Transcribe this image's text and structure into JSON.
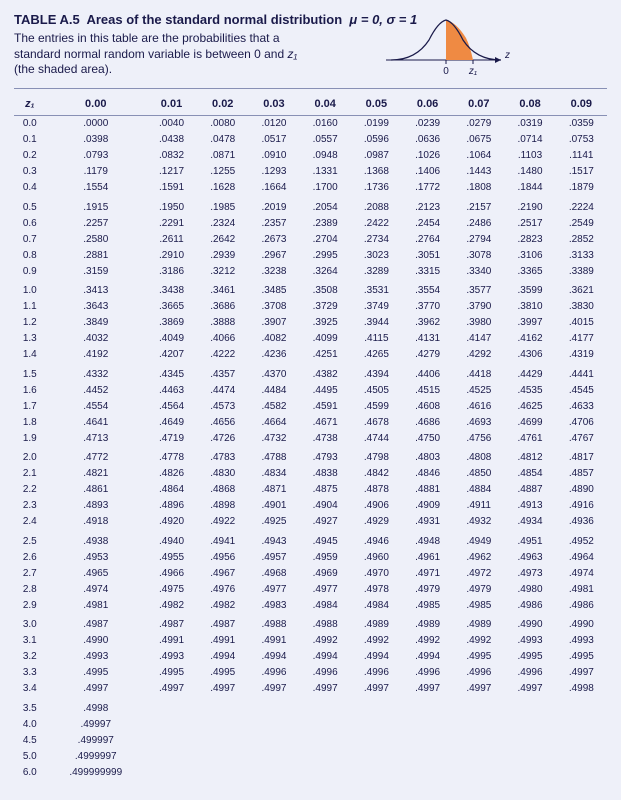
{
  "table_id": "TABLE A.5",
  "title_main": "Areas of the standard normal distribution",
  "mu_label": "μ = 0,",
  "sigma_label": "σ = 1",
  "subtitle_line1": "The entries in this table are the probabilities that a",
  "subtitle_line2": "standard normal random variable is between 0 and",
  "z1_sym": "z₁",
  "subtitle_line3": "(the shaded area).",
  "curve_axis_z": "z",
  "curve_axis_0": "0",
  "curve_axis_z1": "z₁",
  "headers": [
    "z₁",
    "0.00",
    "0.01",
    "0.02",
    "0.03",
    "0.04",
    "0.05",
    "0.06",
    "0.07",
    "0.08",
    "0.09"
  ],
  "colors": {
    "page_bg": "#eef0f9",
    "text": "#1a1a4a",
    "rule": "#8890b5",
    "curve_stroke": "#1a1a4a",
    "curve_fill": "#ef8a43"
  },
  "groups": [
    [
      {
        "z1": "0.0",
        "v": [
          ".0000",
          ".0040",
          ".0080",
          ".0120",
          ".0160",
          ".0199",
          ".0239",
          ".0279",
          ".0319",
          ".0359"
        ]
      },
      {
        "z1": "0.1",
        "v": [
          ".0398",
          ".0438",
          ".0478",
          ".0517",
          ".0557",
          ".0596",
          ".0636",
          ".0675",
          ".0714",
          ".0753"
        ]
      },
      {
        "z1": "0.2",
        "v": [
          ".0793",
          ".0832",
          ".0871",
          ".0910",
          ".0948",
          ".0987",
          ".1026",
          ".1064",
          ".1103",
          ".1141"
        ]
      },
      {
        "z1": "0.3",
        "v": [
          ".1179",
          ".1217",
          ".1255",
          ".1293",
          ".1331",
          ".1368",
          ".1406",
          ".1443",
          ".1480",
          ".1517"
        ]
      },
      {
        "z1": "0.4",
        "v": [
          ".1554",
          ".1591",
          ".1628",
          ".1664",
          ".1700",
          ".1736",
          ".1772",
          ".1808",
          ".1844",
          ".1879"
        ]
      }
    ],
    [
      {
        "z1": "0.5",
        "v": [
          ".1915",
          ".1950",
          ".1985",
          ".2019",
          ".2054",
          ".2088",
          ".2123",
          ".2157",
          ".2190",
          ".2224"
        ]
      },
      {
        "z1": "0.6",
        "v": [
          ".2257",
          ".2291",
          ".2324",
          ".2357",
          ".2389",
          ".2422",
          ".2454",
          ".2486",
          ".2517",
          ".2549"
        ]
      },
      {
        "z1": "0.7",
        "v": [
          ".2580",
          ".2611",
          ".2642",
          ".2673",
          ".2704",
          ".2734",
          ".2764",
          ".2794",
          ".2823",
          ".2852"
        ]
      },
      {
        "z1": "0.8",
        "v": [
          ".2881",
          ".2910",
          ".2939",
          ".2967",
          ".2995",
          ".3023",
          ".3051",
          ".3078",
          ".3106",
          ".3133"
        ]
      },
      {
        "z1": "0.9",
        "v": [
          ".3159",
          ".3186",
          ".3212",
          ".3238",
          ".3264",
          ".3289",
          ".3315",
          ".3340",
          ".3365",
          ".3389"
        ]
      }
    ],
    [
      {
        "z1": "1.0",
        "v": [
          ".3413",
          ".3438",
          ".3461",
          ".3485",
          ".3508",
          ".3531",
          ".3554",
          ".3577",
          ".3599",
          ".3621"
        ]
      },
      {
        "z1": "1.1",
        "v": [
          ".3643",
          ".3665",
          ".3686",
          ".3708",
          ".3729",
          ".3749",
          ".3770",
          ".3790",
          ".3810",
          ".3830"
        ]
      },
      {
        "z1": "1.2",
        "v": [
          ".3849",
          ".3869",
          ".3888",
          ".3907",
          ".3925",
          ".3944",
          ".3962",
          ".3980",
          ".3997",
          ".4015"
        ]
      },
      {
        "z1": "1.3",
        "v": [
          ".4032",
          ".4049",
          ".4066",
          ".4082",
          ".4099",
          ".4115",
          ".4131",
          ".4147",
          ".4162",
          ".4177"
        ]
      },
      {
        "z1": "1.4",
        "v": [
          ".4192",
          ".4207",
          ".4222",
          ".4236",
          ".4251",
          ".4265",
          ".4279",
          ".4292",
          ".4306",
          ".4319"
        ]
      }
    ],
    [
      {
        "z1": "1.5",
        "v": [
          ".4332",
          ".4345",
          ".4357",
          ".4370",
          ".4382",
          ".4394",
          ".4406",
          ".4418",
          ".4429",
          ".4441"
        ]
      },
      {
        "z1": "1.6",
        "v": [
          ".4452",
          ".4463",
          ".4474",
          ".4484",
          ".4495",
          ".4505",
          ".4515",
          ".4525",
          ".4535",
          ".4545"
        ]
      },
      {
        "z1": "1.7",
        "v": [
          ".4554",
          ".4564",
          ".4573",
          ".4582",
          ".4591",
          ".4599",
          ".4608",
          ".4616",
          ".4625",
          ".4633"
        ]
      },
      {
        "z1": "1.8",
        "v": [
          ".4641",
          ".4649",
          ".4656",
          ".4664",
          ".4671",
          ".4678",
          ".4686",
          ".4693",
          ".4699",
          ".4706"
        ]
      },
      {
        "z1": "1.9",
        "v": [
          ".4713",
          ".4719",
          ".4726",
          ".4732",
          ".4738",
          ".4744",
          ".4750",
          ".4756",
          ".4761",
          ".4767"
        ]
      }
    ],
    [
      {
        "z1": "2.0",
        "v": [
          ".4772",
          ".4778",
          ".4783",
          ".4788",
          ".4793",
          ".4798",
          ".4803",
          ".4808",
          ".4812",
          ".4817"
        ]
      },
      {
        "z1": "2.1",
        "v": [
          ".4821",
          ".4826",
          ".4830",
          ".4834",
          ".4838",
          ".4842",
          ".4846",
          ".4850",
          ".4854",
          ".4857"
        ]
      },
      {
        "z1": "2.2",
        "v": [
          ".4861",
          ".4864",
          ".4868",
          ".4871",
          ".4875",
          ".4878",
          ".4881",
          ".4884",
          ".4887",
          ".4890"
        ]
      },
      {
        "z1": "2.3",
        "v": [
          ".4893",
          ".4896",
          ".4898",
          ".4901",
          ".4904",
          ".4906",
          ".4909",
          ".4911",
          ".4913",
          ".4916"
        ]
      },
      {
        "z1": "2.4",
        "v": [
          ".4918",
          ".4920",
          ".4922",
          ".4925",
          ".4927",
          ".4929",
          ".4931",
          ".4932",
          ".4934",
          ".4936"
        ]
      }
    ],
    [
      {
        "z1": "2.5",
        "v": [
          ".4938",
          ".4940",
          ".4941",
          ".4943",
          ".4945",
          ".4946",
          ".4948",
          ".4949",
          ".4951",
          ".4952"
        ]
      },
      {
        "z1": "2.6",
        "v": [
          ".4953",
          ".4955",
          ".4956",
          ".4957",
          ".4959",
          ".4960",
          ".4961",
          ".4962",
          ".4963",
          ".4964"
        ]
      },
      {
        "z1": "2.7",
        "v": [
          ".4965",
          ".4966",
          ".4967",
          ".4968",
          ".4969",
          ".4970",
          ".4971",
          ".4972",
          ".4973",
          ".4974"
        ]
      },
      {
        "z1": "2.8",
        "v": [
          ".4974",
          ".4975",
          ".4976",
          ".4977",
          ".4977",
          ".4978",
          ".4979",
          ".4979",
          ".4980",
          ".4981"
        ]
      },
      {
        "z1": "2.9",
        "v": [
          ".4981",
          ".4982",
          ".4982",
          ".4983",
          ".4984",
          ".4984",
          ".4985",
          ".4985",
          ".4986",
          ".4986"
        ]
      }
    ],
    [
      {
        "z1": "3.0",
        "v": [
          ".4987",
          ".4987",
          ".4987",
          ".4988",
          ".4988",
          ".4989",
          ".4989",
          ".4989",
          ".4990",
          ".4990"
        ]
      },
      {
        "z1": "3.1",
        "v": [
          ".4990",
          ".4991",
          ".4991",
          ".4991",
          ".4992",
          ".4992",
          ".4992",
          ".4992",
          ".4993",
          ".4993"
        ]
      },
      {
        "z1": "3.2",
        "v": [
          ".4993",
          ".4993",
          ".4994",
          ".4994",
          ".4994",
          ".4994",
          ".4994",
          ".4995",
          ".4995",
          ".4995"
        ]
      },
      {
        "z1": "3.3",
        "v": [
          ".4995",
          ".4995",
          ".4995",
          ".4996",
          ".4996",
          ".4996",
          ".4996",
          ".4996",
          ".4996",
          ".4997"
        ]
      },
      {
        "z1": "3.4",
        "v": [
          ".4997",
          ".4997",
          ".4997",
          ".4997",
          ".4997",
          ".4997",
          ".4997",
          ".4997",
          ".4997",
          ".4998"
        ]
      }
    ],
    [
      {
        "z1": "3.5",
        "v": [
          ".4998",
          "",
          "",
          "",
          "",
          "",
          "",
          "",
          "",
          ""
        ]
      },
      {
        "z1": "4.0",
        "v": [
          ".49997",
          "",
          "",
          "",
          "",
          "",
          "",
          "",
          "",
          ""
        ]
      },
      {
        "z1": "4.5",
        "v": [
          ".499997",
          "",
          "",
          "",
          "",
          "",
          "",
          "",
          "",
          ""
        ]
      },
      {
        "z1": "5.0",
        "v": [
          ".4999997",
          "",
          "",
          "",
          "",
          "",
          "",
          "",
          "",
          ""
        ]
      },
      {
        "z1": "6.0",
        "v": [
          ".499999999",
          "",
          "",
          "",
          "",
          "",
          "",
          "",
          "",
          ""
        ]
      }
    ]
  ]
}
